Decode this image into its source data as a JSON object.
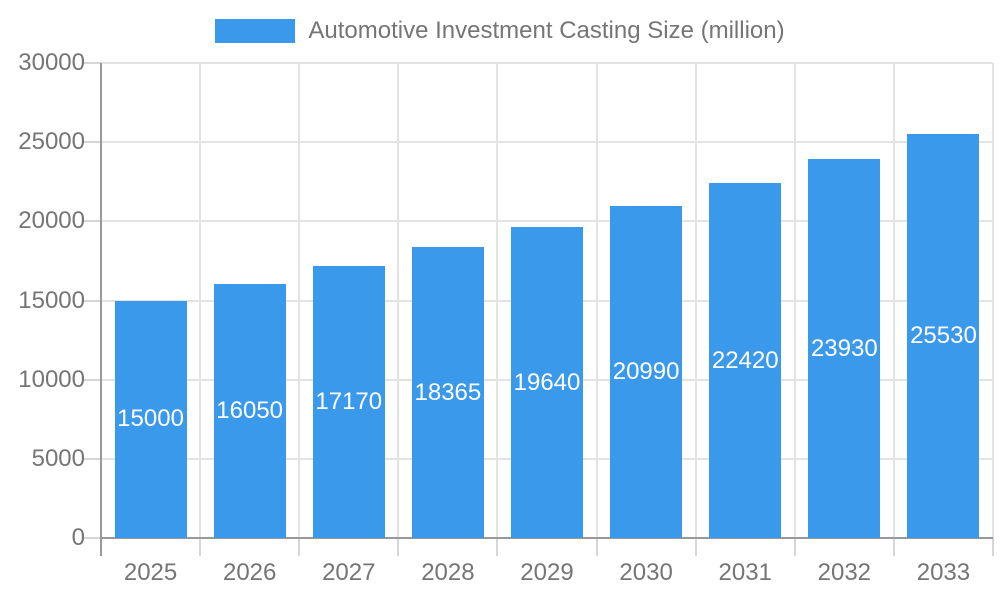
{
  "legend": {
    "label": "Automotive Investment Casting Size (million)"
  },
  "chart_data": {
    "type": "bar",
    "title": "Automotive Investment Casting Size (million)",
    "categories": [
      "2025",
      "2026",
      "2027",
      "2028",
      "2029",
      "2030",
      "2031",
      "2032",
      "2033"
    ],
    "series": [
      {
        "name": "Automotive Investment Casting Size (million)",
        "values": [
          15000,
          16050,
          17170,
          18365,
          19640,
          20990,
          22420,
          23930,
          25530
        ]
      }
    ],
    "value_labels": [
      "15000",
      "16050",
      "17170",
      "18365",
      "19640",
      "20990",
      "22420",
      "23930",
      "25530"
    ],
    "xlabel": "",
    "ylabel": "",
    "ylim": [
      0,
      30000
    ],
    "y_ticks": [
      0,
      5000,
      10000,
      15000,
      20000,
      25000,
      30000
    ],
    "grid": "on",
    "legend_position": "top",
    "colors": {
      "bar": "#3B99EC",
      "value_label": "#FFFFFF",
      "axis_text": "#757575",
      "grid_line": "#E3E3E3",
      "tick_line": "#D6D6D6",
      "axis_line": "#999999",
      "background": "#FFFFFF"
    }
  }
}
